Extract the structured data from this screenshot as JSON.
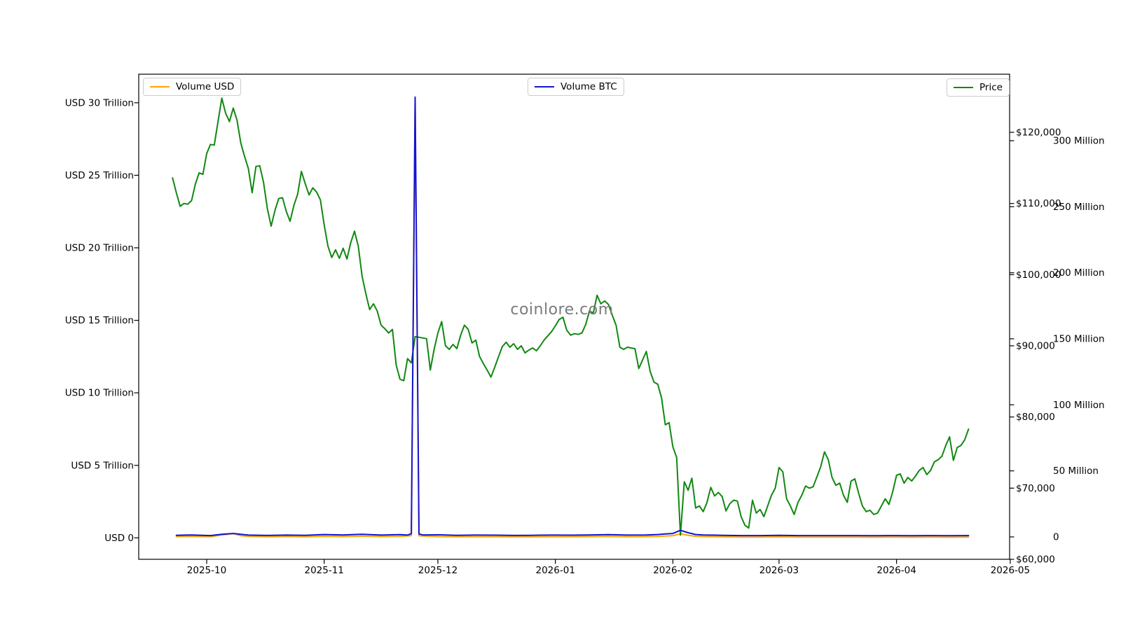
{
  "page": {
    "background": "#ffffff"
  },
  "watermark": {
    "text": "coinlore.com",
    "color": "#7b7b7b"
  },
  "legends": [
    {
      "id": "volume-usd",
      "label": "Volume USD",
      "color": "#ffa500"
    },
    {
      "id": "volume-btc",
      "label": "Volume BTC",
      "color": "#1414d2"
    },
    {
      "id": "price",
      "label": "Price",
      "color": "#118811"
    }
  ],
  "chart_data": {
    "type": "line",
    "title": "",
    "x_unit": "date",
    "period": {
      "start_date": "2025-09-22",
      "end_date": "2026-04-20",
      "num_points": 211
    },
    "grid": false,
    "x_axis": {
      "ticks": [
        {
          "label": "2025-10",
          "day": 9
        },
        {
          "label": "2025-11",
          "day": 40
        },
        {
          "label": "2025-12",
          "day": 70
        },
        {
          "label": "2026-01",
          "day": 101
        },
        {
          "label": "2026-02",
          "day": 132
        },
        {
          "label": "2026-03",
          "day": 160
        },
        {
          "label": "2026-04",
          "day": 191
        },
        {
          "label": "2026-05",
          "day": 221
        }
      ]
    },
    "left_axis": {
      "series": "Volume USD",
      "unit": "USD Trillion",
      "range": [
        0,
        30
      ],
      "ticks": [
        {
          "label": "USD 0",
          "value": 0
        },
        {
          "label": "USD 5 Trillion",
          "value": 5
        },
        {
          "label": "USD 10 Trillion",
          "value": 10
        },
        {
          "label": "USD 15 Trillion",
          "value": 15
        },
        {
          "label": "USD 20 Trillion",
          "value": 20
        },
        {
          "label": "USD 25 Trillion",
          "value": 25
        },
        {
          "label": "USD 30 Trillion",
          "value": 30
        }
      ]
    },
    "right_price_axis": {
      "series": "Price",
      "unit": "USD",
      "range": [
        60000,
        120000
      ],
      "ticks": [
        {
          "label": "$60,000",
          "value": 60000
        },
        {
          "label": "$70,000",
          "value": 70000
        },
        {
          "label": "$80,000",
          "value": 80000
        },
        {
          "label": "$90,000",
          "value": 90000
        },
        {
          "label": "$100,000",
          "value": 100000
        },
        {
          "label": "$110,000",
          "value": 110000
        },
        {
          "label": "$120,000",
          "value": 120000
        }
      ]
    },
    "right_million_axis": {
      "series": "Volume BTC",
      "unit": "Million",
      "range": [
        0,
        300
      ],
      "ticks": [
        {
          "label": "0",
          "value": 0
        },
        {
          "label": "50 Million",
          "value": 50
        },
        {
          "label": "100 Million",
          "value": 100
        },
        {
          "label": "150 Million",
          "value": 150
        },
        {
          "label": "200 Million",
          "value": 200
        },
        {
          "label": "250 Million",
          "value": 250
        },
        {
          "label": "300 Million",
          "value": 300
        }
      ]
    },
    "series": [
      {
        "name": "Volume USD",
        "color": "#ffa500",
        "axis": "left_trillion",
        "points": [
          [
            1,
            0.09
          ],
          [
            5,
            0.1
          ],
          [
            10,
            0.08
          ],
          [
            13,
            0.2
          ],
          [
            16,
            0.3
          ],
          [
            18,
            0.15
          ],
          [
            20,
            0.1
          ],
          [
            25,
            0.08
          ],
          [
            30,
            0.09
          ],
          [
            35,
            0.08
          ],
          [
            40,
            0.11
          ],
          [
            45,
            0.09
          ],
          [
            50,
            0.12
          ],
          [
            55,
            0.09
          ],
          [
            60,
            0.1
          ],
          [
            63,
            0.15
          ],
          [
            64,
            30
          ],
          [
            65,
            0.14
          ],
          [
            70,
            0.09
          ],
          [
            75,
            0.08
          ],
          [
            80,
            0.08
          ],
          [
            85,
            0.08
          ],
          [
            90,
            0.07
          ],
          [
            95,
            0.07
          ],
          [
            100,
            0.08
          ],
          [
            105,
            0.08
          ],
          [
            110,
            0.09
          ],
          [
            115,
            0.1
          ],
          [
            120,
            0.08
          ],
          [
            125,
            0.09
          ],
          [
            128,
            0.1
          ],
          [
            130,
            0.13
          ],
          [
            132,
            0.15
          ],
          [
            134,
            0.28
          ],
          [
            136,
            0.18
          ],
          [
            138,
            0.11
          ],
          [
            140,
            0.09
          ],
          [
            145,
            0.07
          ],
          [
            150,
            0.06
          ],
          [
            155,
            0.06
          ],
          [
            160,
            0.07
          ],
          [
            165,
            0.06
          ],
          [
            170,
            0.06
          ],
          [
            175,
            0.06
          ],
          [
            180,
            0.06
          ],
          [
            185,
            0.05
          ],
          [
            190,
            0.06
          ],
          [
            195,
            0.05
          ],
          [
            200,
            0.06
          ],
          [
            205,
            0.05
          ],
          [
            210,
            0.06
          ]
        ]
      },
      {
        "name": "Price",
        "color": "#118811",
        "axis": "right_price",
        "start_day": 0,
        "daily_values": [
          113600,
          111500,
          109600,
          110000,
          109900,
          110400,
          112700,
          114300,
          114100,
          117000,
          118300,
          118200,
          121500,
          124800,
          122700,
          121500,
          123400,
          121700,
          118500,
          116600,
          114900,
          111500,
          115200,
          115300,
          113000,
          109300,
          106800,
          109000,
          110700,
          110800,
          108900,
          107500,
          109700,
          111300,
          114500,
          112800,
          111200,
          112200,
          111600,
          110500,
          107000,
          104000,
          102400,
          103500,
          102300,
          103700,
          102200,
          104500,
          106100,
          104000,
          99800,
          97300,
          95100,
          95900,
          94900,
          92900,
          92400,
          91800,
          92300,
          87300,
          85300,
          85100,
          88200,
          87600,
          91300,
          91200,
          91100,
          91000,
          86600,
          89500,
          91800,
          93400,
          90000,
          89500,
          90200,
          89600,
          91500,
          92900,
          92300,
          90400,
          90800,
          88500,
          87500,
          86600,
          85600,
          87000,
          88500,
          89900,
          90500,
          89800,
          90300,
          89500,
          90000,
          89000,
          89400,
          89700,
          89300,
          90000,
          90800,
          91400,
          92000,
          92800,
          93700,
          94000,
          92200,
          91500,
          91700,
          91600,
          91800,
          93000,
          94900,
          94600,
          97100,
          95900,
          96300,
          95800,
          94300,
          92900,
          89800,
          89500,
          89800,
          89700,
          89600,
          86800,
          88000,
          89200,
          86400,
          84900,
          84600,
          82700,
          78900,
          79200,
          75800,
          74300,
          63400,
          70900,
          69700,
          71400,
          67200,
          67500,
          66700,
          68000,
          70100,
          68900,
          69400,
          68800,
          66800,
          67800,
          68300,
          68200,
          66000,
          64800,
          64400,
          68300,
          66500,
          67000,
          66000,
          67500,
          69000,
          70000,
          72900,
          72300,
          68500,
          67500,
          66300,
          68000,
          69000,
          70300,
          70000,
          70200,
          71600,
          73000,
          75100,
          74000,
          71500,
          70400,
          70700,
          69000,
          68000,
          71000,
          71300,
          69300,
          67500,
          66700,
          66900,
          66300,
          66500,
          67500,
          68500,
          67700,
          69500,
          71800,
          72000,
          70700,
          71500,
          71000,
          71700,
          72500,
          72900,
          71900,
          72500,
          73700,
          74000,
          74500,
          76000,
          77200,
          73900,
          75700,
          76000,
          76800,
          78300
        ]
      },
      {
        "name": "Volume BTC",
        "color": "#1414d2",
        "axis": "right_million",
        "points": [
          [
            1,
            1.2
          ],
          [
            5,
            1.5
          ],
          [
            10,
            1.0
          ],
          [
            13,
            2.0
          ],
          [
            16,
            2.6
          ],
          [
            20,
            1.4
          ],
          [
            25,
            1.1
          ],
          [
            30,
            1.4
          ],
          [
            35,
            1.2
          ],
          [
            40,
            1.8
          ],
          [
            45,
            1.5
          ],
          [
            50,
            2.0
          ],
          [
            55,
            1.4
          ],
          [
            60,
            1.7
          ],
          [
            62,
            1.4
          ],
          [
            63,
            2.5
          ],
          [
            64,
            333
          ],
          [
            65,
            2.2
          ],
          [
            66,
            1.5
          ],
          [
            70,
            1.6
          ],
          [
            75,
            1.2
          ],
          [
            80,
            1.4
          ],
          [
            85,
            1.3
          ],
          [
            90,
            1.1
          ],
          [
            95,
            1.2
          ],
          [
            100,
            1.4
          ],
          [
            105,
            1.3
          ],
          [
            110,
            1.5
          ],
          [
            115,
            1.7
          ],
          [
            120,
            1.4
          ],
          [
            125,
            1.5
          ],
          [
            128,
            1.8
          ],
          [
            130,
            2.2
          ],
          [
            132,
            2.6
          ],
          [
            134,
            5.0
          ],
          [
            136,
            3.2
          ],
          [
            138,
            1.8
          ],
          [
            140,
            1.5
          ],
          [
            145,
            1.2
          ],
          [
            150,
            1.0
          ],
          [
            155,
            1.0
          ],
          [
            160,
            1.2
          ],
          [
            165,
            1.0
          ],
          [
            170,
            1.0
          ],
          [
            175,
            1.0
          ],
          [
            180,
            1.0
          ],
          [
            185,
            0.9
          ],
          [
            190,
            1.0
          ],
          [
            195,
            0.9
          ],
          [
            200,
            1.0
          ],
          [
            205,
            0.9
          ],
          [
            210,
            1.0
          ]
        ]
      }
    ]
  }
}
